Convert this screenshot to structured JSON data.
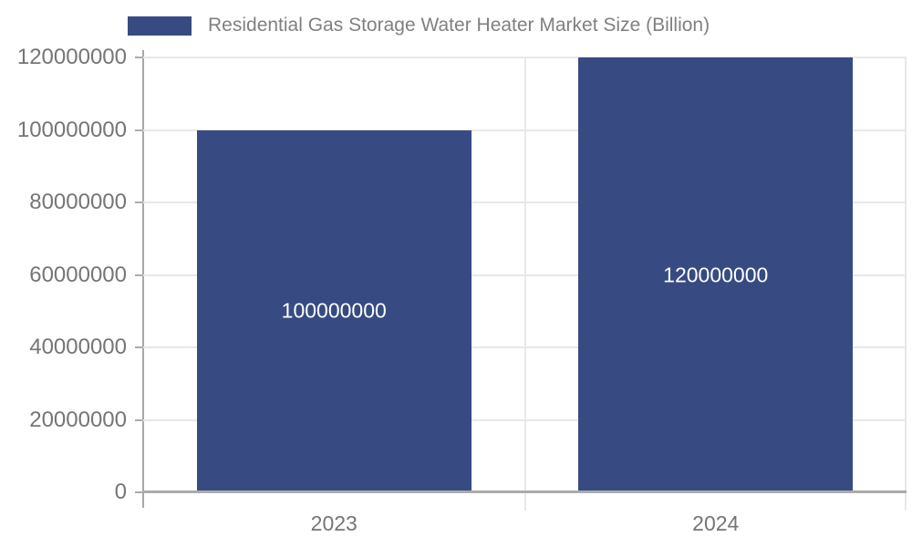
{
  "legend": {
    "swatch_color": "#374B82",
    "label": "Residential Gas Storage Water Heater Market Size (Billion)"
  },
  "chart_data": {
    "type": "bar",
    "title": "Residential Gas Storage Water Heater Market Size (Billion)",
    "categories": [
      "2023",
      "2024"
    ],
    "values": [
      100000000,
      120000000
    ],
    "bar_labels": [
      "100000000",
      "120000000"
    ],
    "yticks": [
      0,
      20000000,
      40000000,
      60000000,
      80000000,
      100000000,
      120000000
    ],
    "ytick_labels": [
      "0",
      "20000000",
      "40000000",
      "60000000",
      "80000000",
      "100000000",
      "120000000"
    ],
    "ylim": [
      0,
      120000000
    ],
    "xlabel": "",
    "ylabel": "",
    "grid": true,
    "legend_position": "top",
    "colors": {
      "bar": "#374B82",
      "bar_label_text": "#ffffff",
      "gridline": "#e8e8e8",
      "axis_line": "#ababab",
      "tick_text": "#757575",
      "title_text": "#808080",
      "background": "#ffffff"
    }
  }
}
